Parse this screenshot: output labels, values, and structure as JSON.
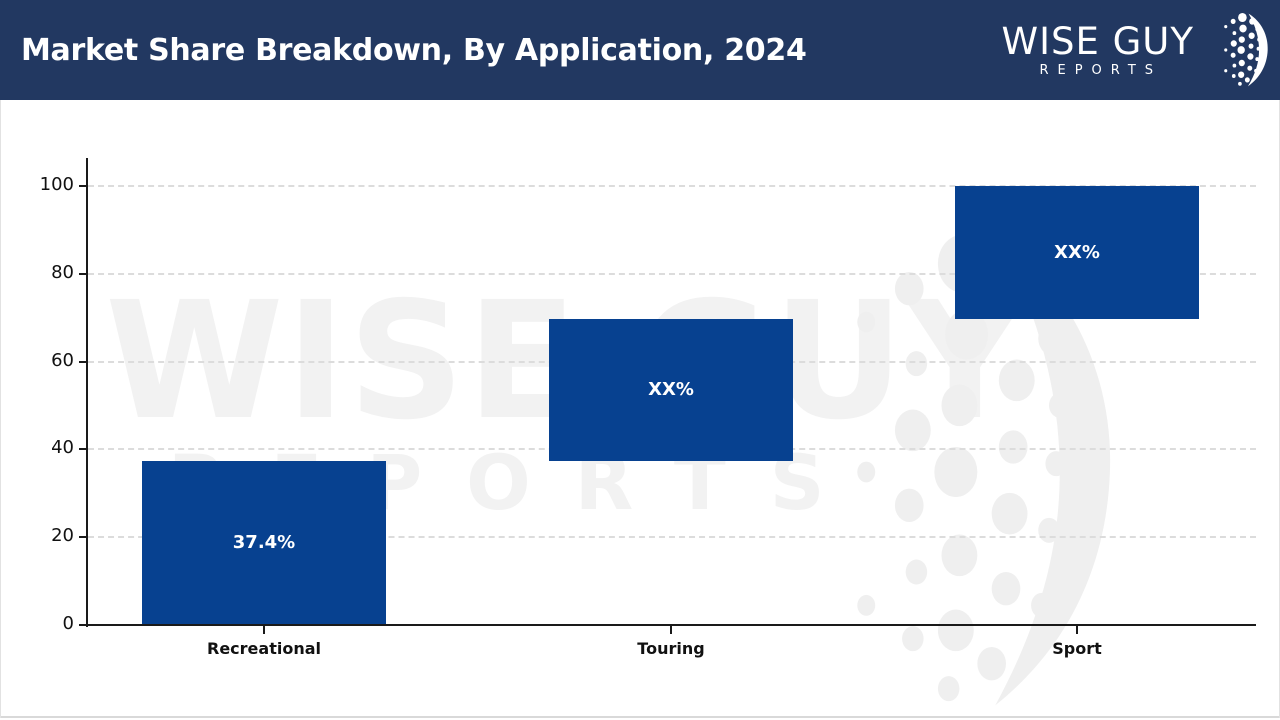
{
  "header": {
    "title": "Market Share Breakdown, By Application, 2024",
    "logo": {
      "line1": "WISE GUY",
      "line2": "REPORTS"
    }
  },
  "watermark": {
    "line1": "WISE GUY",
    "line2": "REPORTS"
  },
  "chart_data": {
    "type": "bar",
    "subtype": "waterfall",
    "title": "Market Share Breakdown, By Application, 2024",
    "categories": [
      "Recreational",
      "Touring",
      "Sport"
    ],
    "segments": [
      {
        "category": "Recreational",
        "start": 0,
        "end": 37.4,
        "value": 37.4,
        "label": "37.4%"
      },
      {
        "category": "Touring",
        "start": 37.4,
        "end": 69.8,
        "value": 32.4,
        "label": "XX%"
      },
      {
        "category": "Sport",
        "start": 69.8,
        "end": 100,
        "value": 30.2,
        "label": "XX%"
      }
    ],
    "ylim": [
      0,
      100
    ],
    "yticks": [
      0,
      20,
      40,
      60,
      80,
      100
    ],
    "xlabel": "",
    "ylabel": "",
    "grid": "horizontal-dashed",
    "legend": "none",
    "bar_color": "#074190",
    "bar_label_color": "#ffffff",
    "axis_color": "#1a1a1a",
    "gridline_color": "#dcdcdc",
    "header_bg_color": "#223861",
    "watermark_color": "#f2f2f2"
  }
}
